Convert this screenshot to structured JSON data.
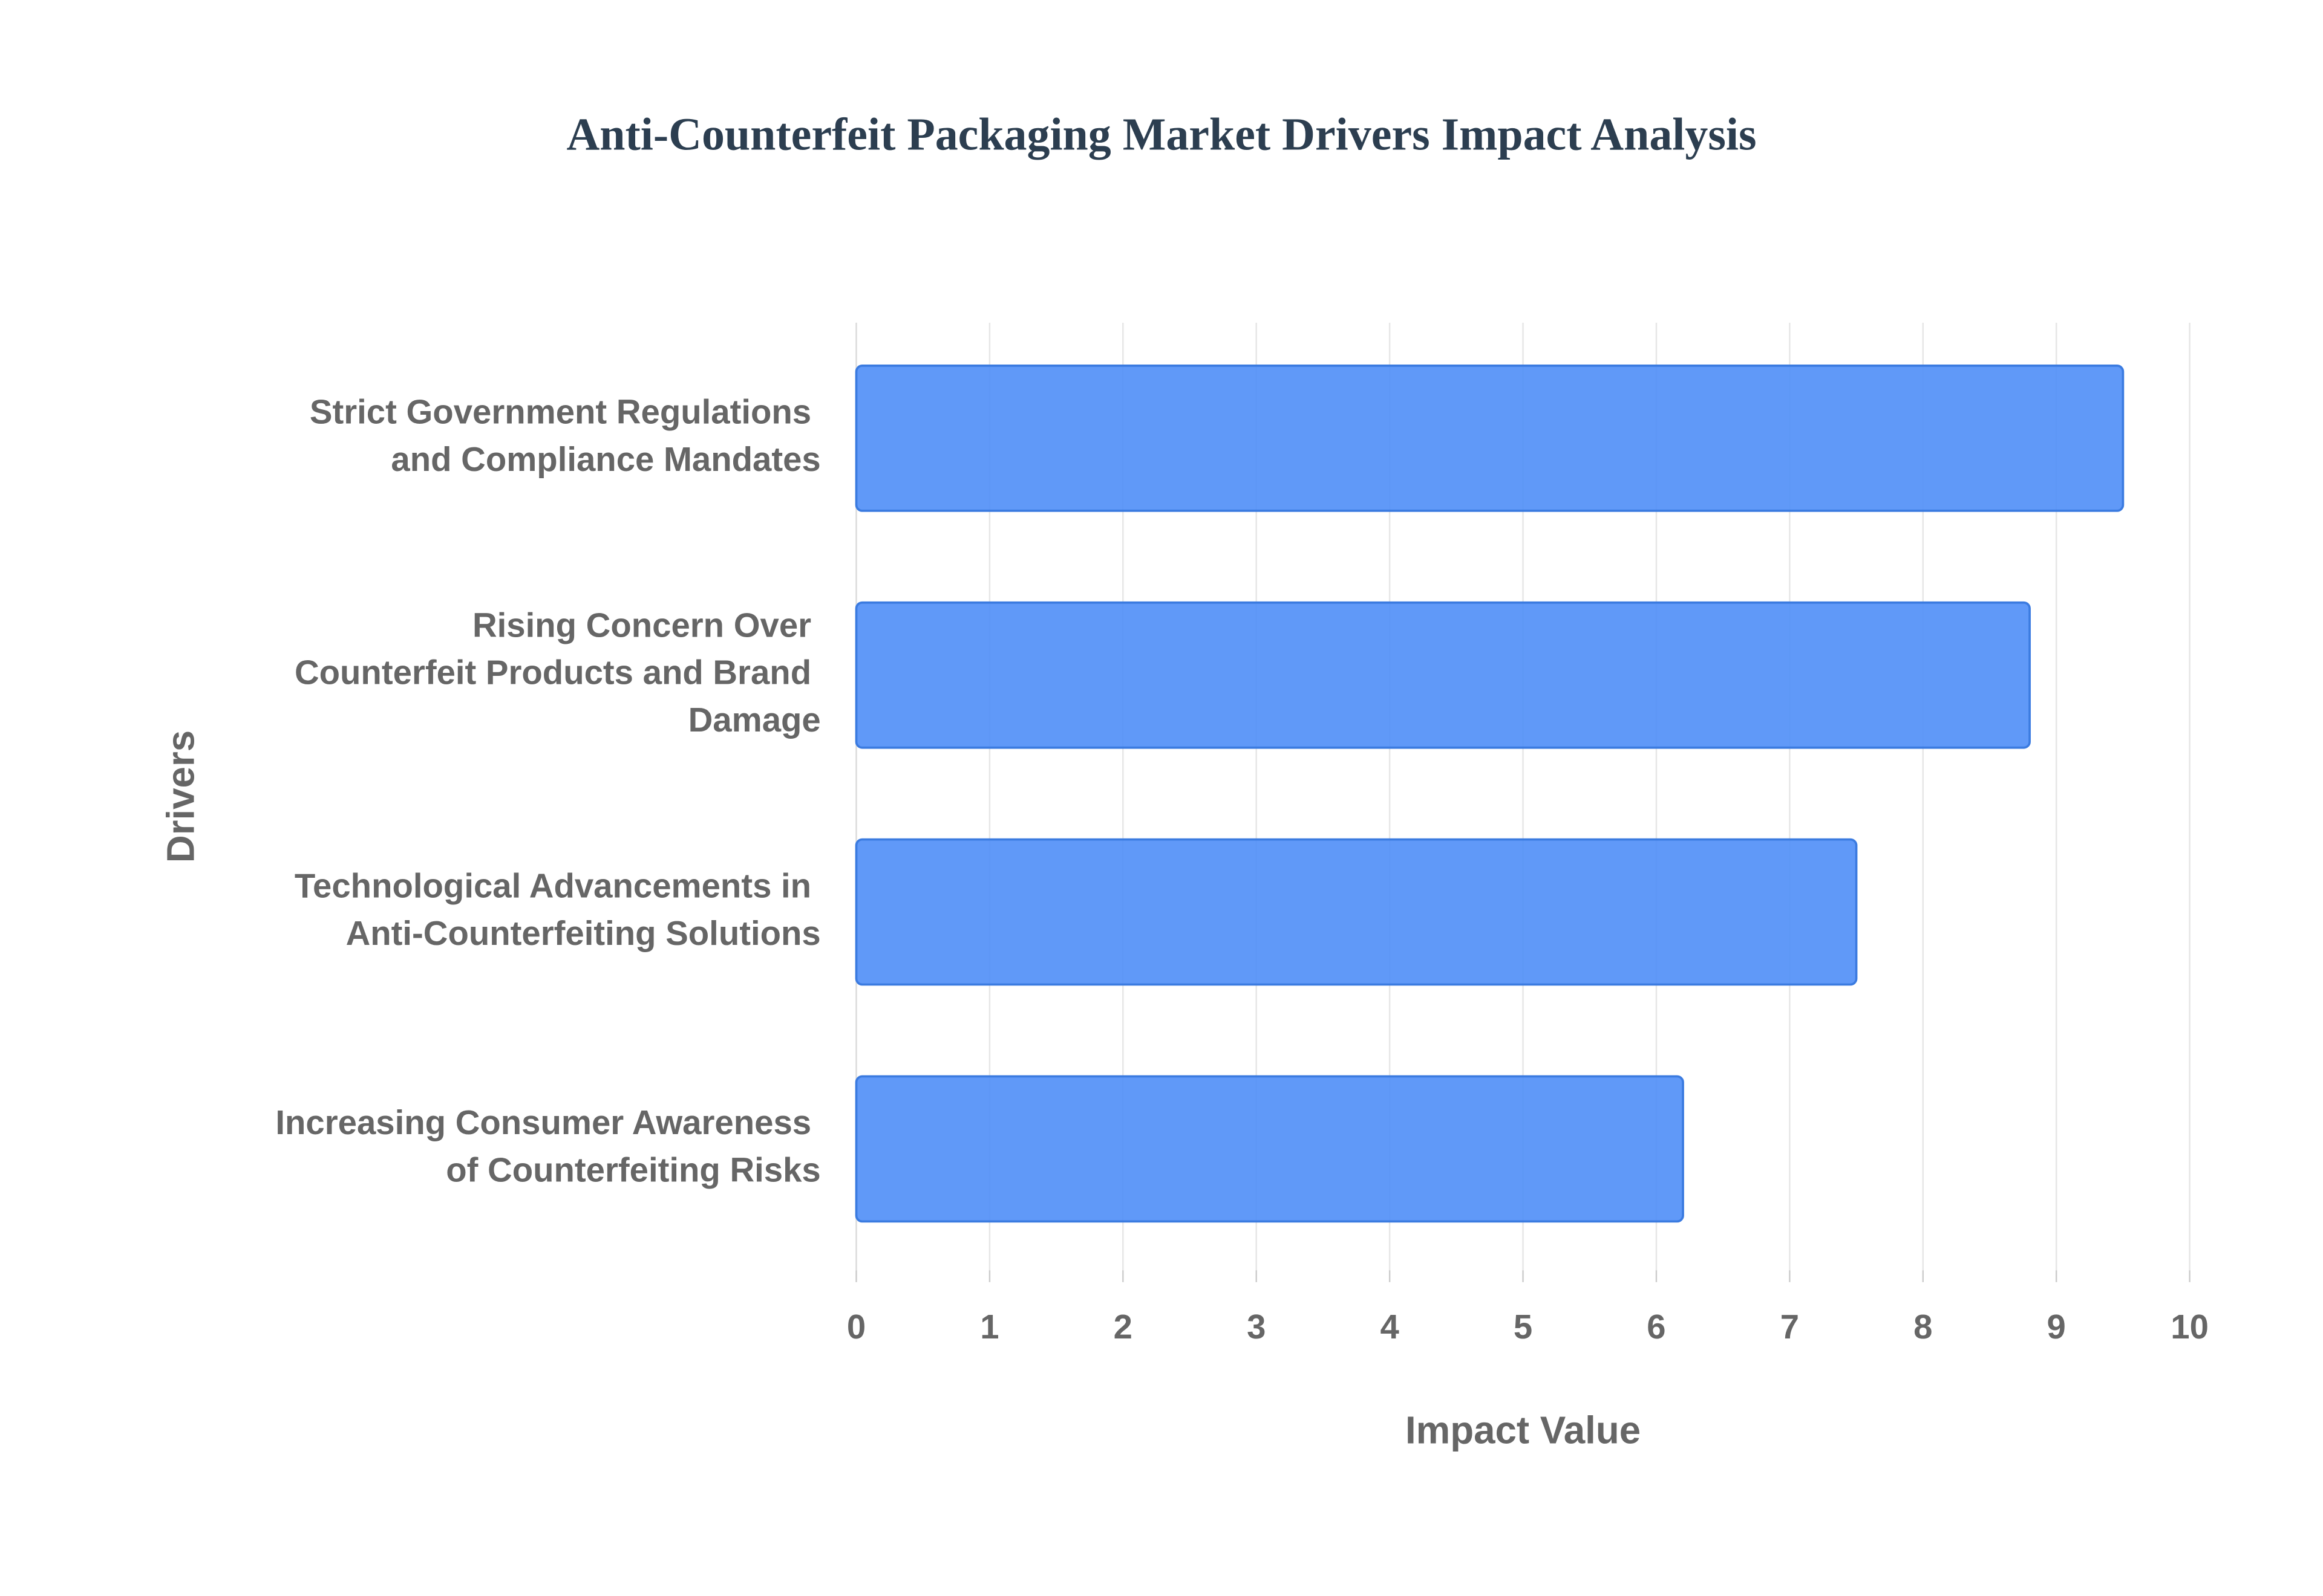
{
  "chart_data": {
    "type": "bar",
    "orientation": "horizontal",
    "title": "Anti-Counterfeit Packaging Market Drivers Impact Analysis",
    "x_label": "Impact Value",
    "y_label": "Drivers",
    "categories": [
      "Strict Government Regulations and Compliance Mandates",
      "Rising Concern Over Counterfeit Products and Brand Damage",
      "Technological Advancements in Anti-Counterfeiting Solutions",
      "Increasing Consumer Awareness of Counterfeiting Risks"
    ],
    "values": [
      9.5,
      8.8,
      7.5,
      6.2
    ],
    "color": "#4f8ef7",
    "xlim": [
      0,
      10
    ],
    "xticks": [
      0,
      1,
      2,
      3,
      4,
      5,
      6,
      7,
      8,
      9,
      10
    ],
    "grid": true
  }
}
